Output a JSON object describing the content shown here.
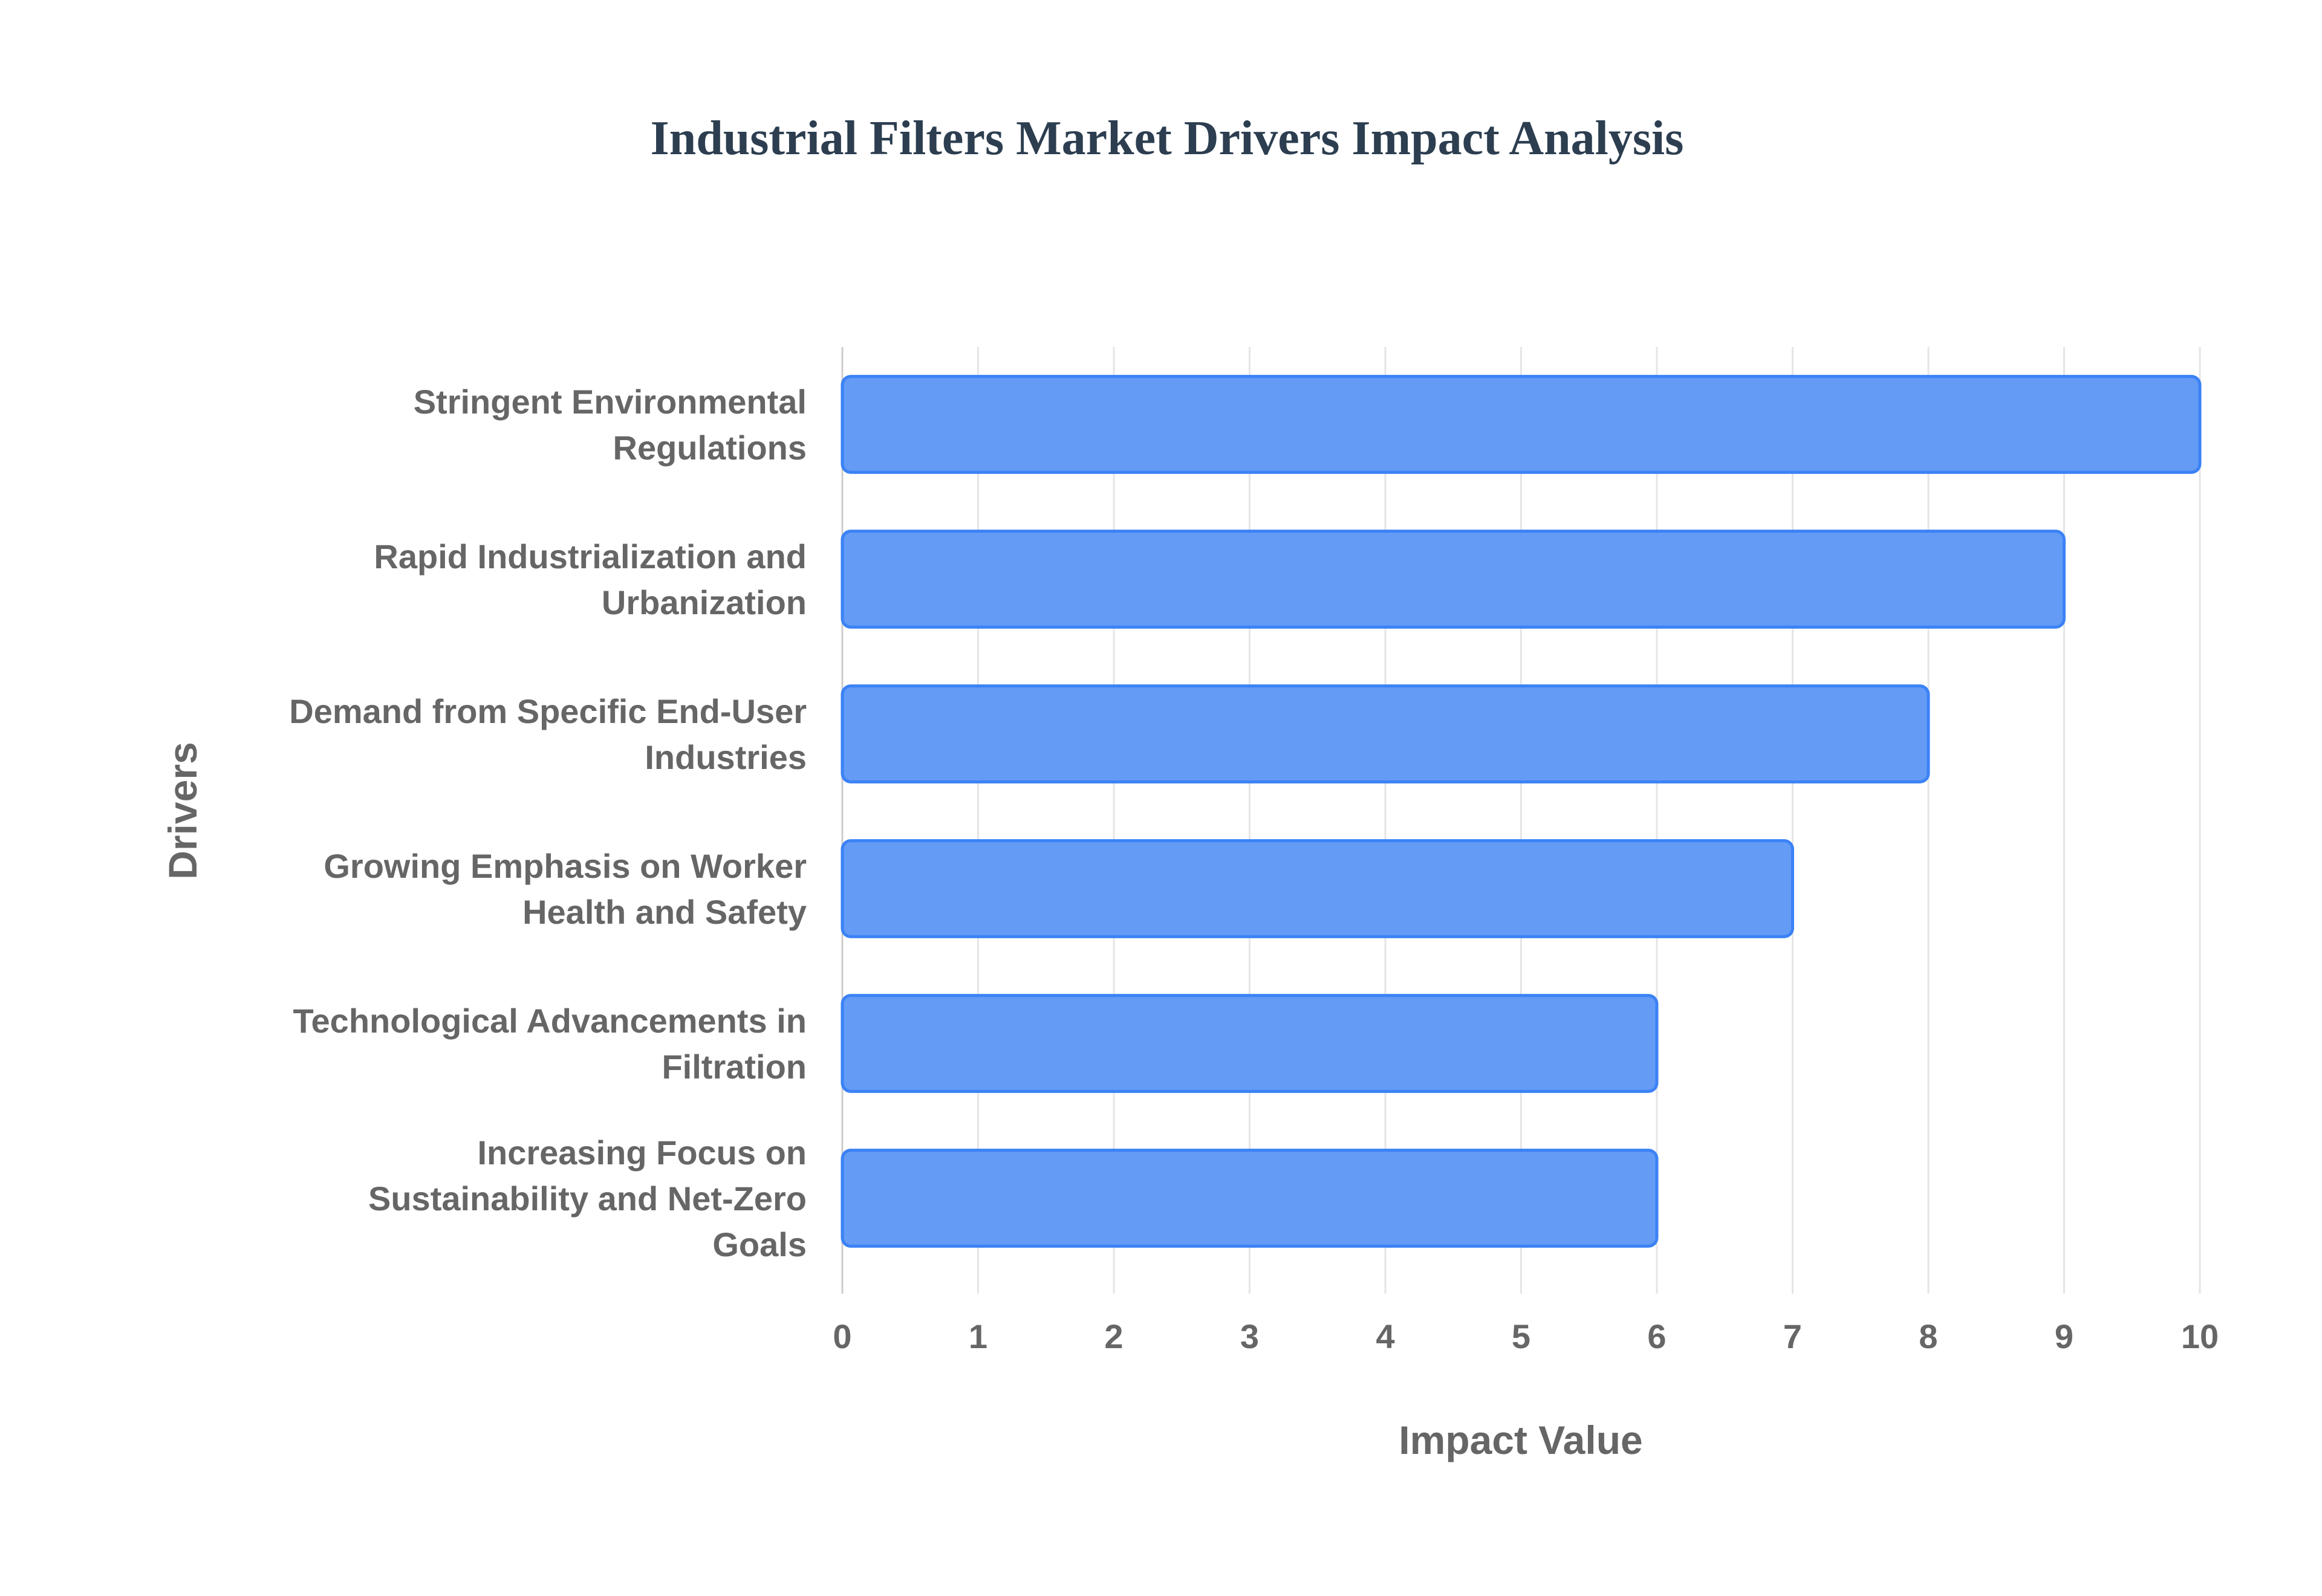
{
  "chart_data": {
    "type": "bar",
    "orientation": "horizontal",
    "title": "Industrial Filters Market Drivers Impact Analysis",
    "xlabel": "Impact Value",
    "ylabel": "Drivers",
    "xlim": [
      0,
      10
    ],
    "xticks": [
      "0",
      "1",
      "2",
      "3",
      "4",
      "5",
      "6",
      "7",
      "8",
      "9",
      "10"
    ],
    "grid": true,
    "categories": [
      [
        "Stringent Environmental",
        "Regulations"
      ],
      [
        "Rapid Industrialization and",
        "Urbanization"
      ],
      [
        "Demand from Specific End-User",
        "Industries"
      ],
      [
        "Growing Emphasis on Worker",
        "Health and Safety"
      ],
      [
        "Technological Advancements in",
        "Filtration"
      ],
      [
        "Increasing Focus on",
        "Sustainability and Net-Zero",
        "Goals"
      ]
    ],
    "values": [
      10,
      9,
      8,
      7,
      6,
      6
    ],
    "colors": {
      "fill": "#639bf5",
      "border": "#3b82f6",
      "grid": "#e5e5e5",
      "axis": "#cccccc"
    }
  }
}
